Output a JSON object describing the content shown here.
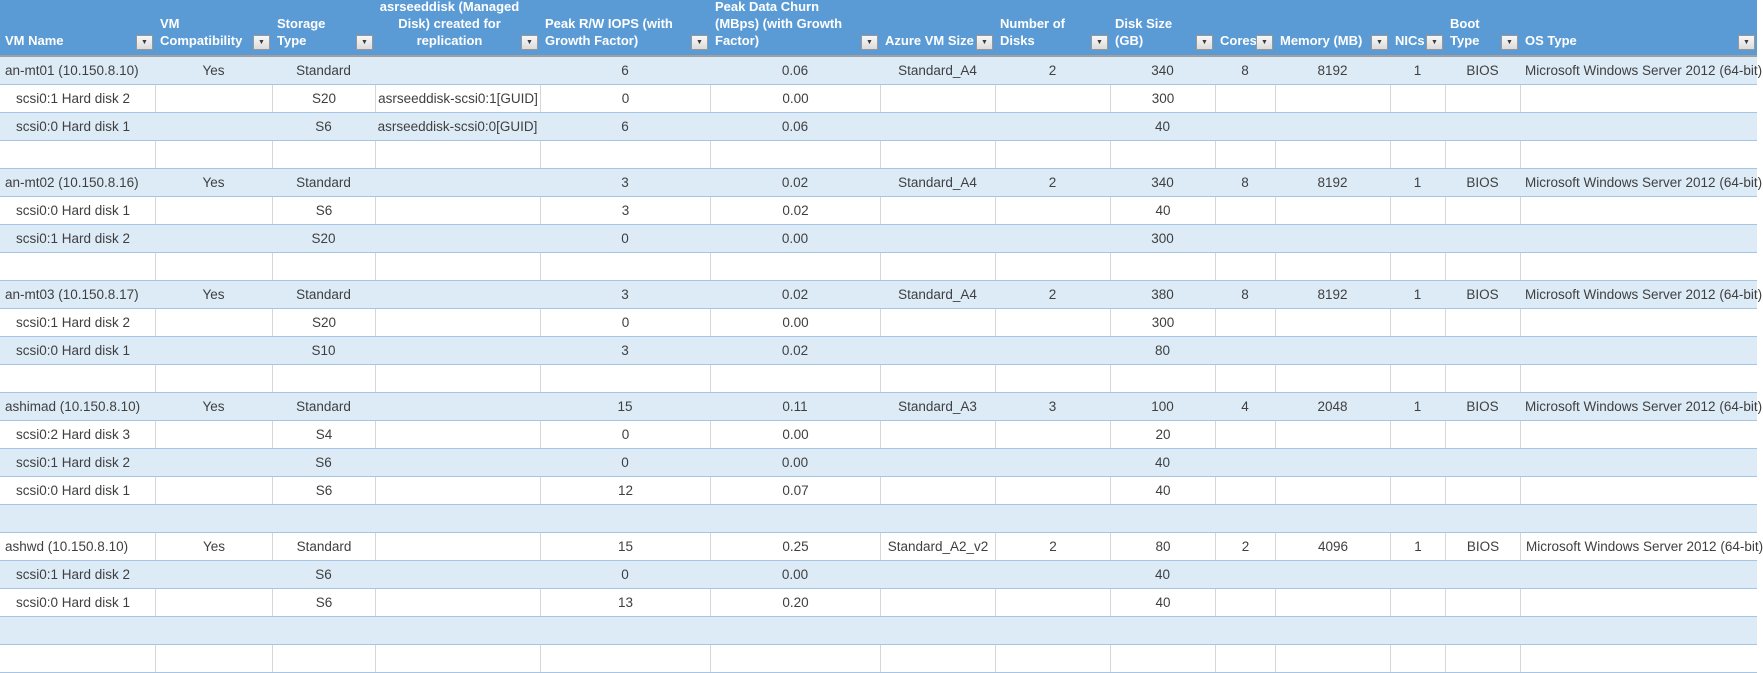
{
  "colors": {
    "header_background": "#5B9BD5",
    "banded_row_background": "#DDEBF7",
    "row_border": "#A6C5E5",
    "gridline": "#D6D6D6",
    "header_text": "#FFFFFF",
    "cell_text": "#3F3F3F"
  },
  "icons": {
    "filter_dropdown": "▼"
  },
  "table": {
    "columns": [
      {
        "label": "VM Name"
      },
      {
        "label": "VM Compatibility"
      },
      {
        "label": "Storage Type"
      },
      {
        "label": "asrseeddisk (Managed Disk) created for replication"
      },
      {
        "label": "Peak R/W IOPS (with Growth Factor)"
      },
      {
        "label": "Peak Data Churn (MBps) (with Growth Factor)"
      },
      {
        "label": "Azure VM Size"
      },
      {
        "label": "Number of Disks"
      },
      {
        "label": "Disk Size (GB)"
      },
      {
        "label": "Cores"
      },
      {
        "label": "Memory (MB)"
      },
      {
        "label": "NICs"
      },
      {
        "label": "Boot Type"
      },
      {
        "label": "OS Type"
      }
    ],
    "rows": [
      {
        "type": "vm",
        "cells": [
          "an-mt01 (10.150.8.10)",
          "Yes",
          "Standard",
          "",
          "6",
          "0.06",
          "Standard_A4",
          "2",
          "340",
          "8",
          "8192",
          "1",
          "BIOS",
          "Microsoft Windows Server 2012 (64-bit)"
        ]
      },
      {
        "type": "disk",
        "cells": [
          "scsi0:1 Hard disk 2",
          "",
          "S20",
          "asrseeddisk-scsi0:1[GUID]",
          "0",
          "0.00",
          "",
          "",
          "300",
          "",
          "",
          "",
          "",
          ""
        ]
      },
      {
        "type": "disk",
        "cells": [
          "scsi0:0 Hard disk 1",
          "",
          "S6",
          "asrseeddisk-scsi0:0[GUID]",
          "6",
          "0.06",
          "",
          "",
          "40",
          "",
          "",
          "",
          "",
          ""
        ]
      },
      {
        "type": "empty",
        "cells": [
          "",
          "",
          "",
          "",
          "",
          "",
          "",
          "",
          "",
          "",
          "",
          "",
          "",
          ""
        ]
      },
      {
        "type": "vm",
        "cells": [
          "an-mt02 (10.150.8.16)",
          "Yes",
          "Standard",
          "",
          "3",
          "0.02",
          "Standard_A4",
          "2",
          "340",
          "8",
          "8192",
          "1",
          "BIOS",
          "Microsoft Windows Server 2012 (64-bit)"
        ]
      },
      {
        "type": "disk",
        "cells": [
          "scsi0:0 Hard disk 1",
          "",
          "S6",
          "",
          "3",
          "0.02",
          "",
          "",
          "40",
          "",
          "",
          "",
          "",
          ""
        ]
      },
      {
        "type": "disk",
        "cells": [
          "scsi0:1 Hard disk 2",
          "",
          "S20",
          "",
          "0",
          "0.00",
          "",
          "",
          "300",
          "",
          "",
          "",
          "",
          ""
        ]
      },
      {
        "type": "empty",
        "cells": [
          "",
          "",
          "",
          "",
          "",
          "",
          "",
          "",
          "",
          "",
          "",
          "",
          "",
          ""
        ]
      },
      {
        "type": "vm",
        "cells": [
          "an-mt03 (10.150.8.17)",
          "Yes",
          "Standard",
          "",
          "3",
          "0.02",
          "Standard_A4",
          "2",
          "380",
          "8",
          "8192",
          "1",
          "BIOS",
          "Microsoft Windows Server 2012 (64-bit)"
        ]
      },
      {
        "type": "disk",
        "cells": [
          "scsi0:1 Hard disk 2",
          "",
          "S20",
          "",
          "0",
          "0.00",
          "",
          "",
          "300",
          "",
          "",
          "",
          "",
          ""
        ]
      },
      {
        "type": "disk",
        "cells": [
          "scsi0:0 Hard disk 1",
          "",
          "S10",
          "",
          "3",
          "0.02",
          "",
          "",
          "80",
          "",
          "",
          "",
          "",
          ""
        ]
      },
      {
        "type": "empty",
        "cells": [
          "",
          "",
          "",
          "",
          "",
          "",
          "",
          "",
          "",
          "",
          "",
          "",
          "",
          ""
        ]
      },
      {
        "type": "vm",
        "cells": [
          "ashimad (10.150.8.10)",
          "Yes",
          "Standard",
          "",
          "15",
          "0.11",
          "Standard_A3",
          "3",
          "100",
          "4",
          "2048",
          "1",
          "BIOS",
          "Microsoft Windows Server 2012 (64-bit)"
        ]
      },
      {
        "type": "disk",
        "cells": [
          "scsi0:2 Hard disk 3",
          "",
          "S4",
          "",
          "0",
          "0.00",
          "",
          "",
          "20",
          "",
          "",
          "",
          "",
          ""
        ]
      },
      {
        "type": "disk",
        "cells": [
          "scsi0:1 Hard disk 2",
          "",
          "S6",
          "",
          "0",
          "0.00",
          "",
          "",
          "40",
          "",
          "",
          "",
          "",
          ""
        ]
      },
      {
        "type": "disk",
        "cells": [
          "scsi0:0 Hard disk 1",
          "",
          "S6",
          "",
          "12",
          "0.07",
          "",
          "",
          "40",
          "",
          "",
          "",
          "",
          ""
        ]
      },
      {
        "type": "empty",
        "cells": [
          "",
          "",
          "",
          "",
          "",
          "",
          "",
          "",
          "",
          "",
          "",
          "",
          "",
          ""
        ]
      },
      {
        "type": "vm",
        "cells": [
          "ashwd (10.150.8.10)",
          "Yes",
          "Standard",
          "",
          "15",
          "0.25",
          "Standard_A2_v2",
          "2",
          "80",
          "2",
          "4096",
          "1",
          "BIOS",
          "Microsoft Windows Server 2012 (64-bit)"
        ]
      },
      {
        "type": "disk",
        "cells": [
          "scsi0:1 Hard disk 2",
          "",
          "S6",
          "",
          "0",
          "0.00",
          "",
          "",
          "40",
          "",
          "",
          "",
          "",
          ""
        ]
      },
      {
        "type": "disk",
        "cells": [
          "scsi0:0 Hard disk 1",
          "",
          "S6",
          "",
          "13",
          "0.20",
          "",
          "",
          "40",
          "",
          "",
          "",
          "",
          ""
        ]
      },
      {
        "type": "empty",
        "cells": [
          "",
          "",
          "",
          "",
          "",
          "",
          "",
          "",
          "",
          "",
          "",
          "",
          "",
          ""
        ]
      },
      {
        "type": "empty",
        "cells": [
          "",
          "",
          "",
          "",
          "",
          "",
          "",
          "",
          "",
          "",
          "",
          "",
          "",
          ""
        ]
      }
    ]
  }
}
